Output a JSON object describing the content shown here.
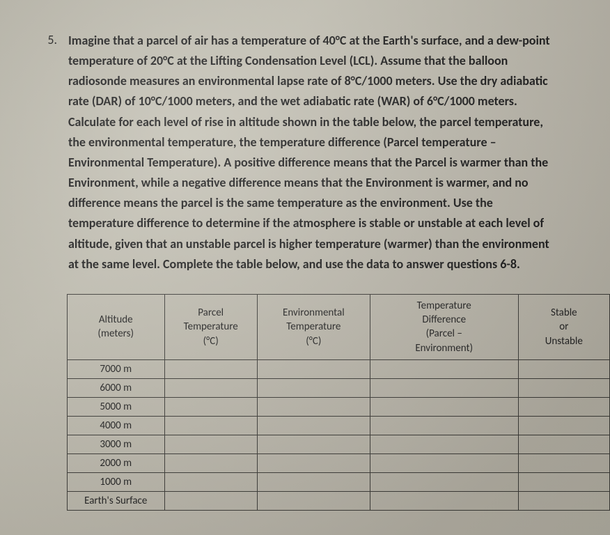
{
  "question": {
    "number": "5.",
    "text": "Imagine that a parcel of air has a temperature of 40°C at the Earth's surface, and a dew-point temperature of 20°C at the Lifting Condensation Level (LCL). Assume that the balloon radiosonde measures an environmental lapse rate of 8°C/1000 meters. Use the dry adiabatic rate (DAR) of 10°C/1000 meters, and the wet adiabatic rate (WAR) of 6°C/1000 meters. Calculate for each level of rise in altitude shown in the table below, the parcel temperature, the environmental temperature, the temperature difference (Parcel temperature – Environmental Temperature). A positive difference means that the Parcel is warmer than the Environment, while a negative difference means that the Environment is warmer, and no difference means the parcel is the same temperature as the environment. Use the temperature difference to determine if the atmosphere is stable or unstable at each level of altitude, given that an unstable parcel is higher temperature (warmer) than the environment at the same level. Complete the table below, and use the data to answer questions 6-8."
  },
  "table": {
    "columns": [
      {
        "lines": [
          "Altitude",
          "(meters)"
        ]
      },
      {
        "lines": [
          "Parcel",
          "Temperature",
          "(°C)"
        ]
      },
      {
        "lines": [
          "Environmental",
          "Temperature",
          "(°C)"
        ]
      },
      {
        "lines": [
          "Temperature",
          "Difference",
          "(Parcel –",
          "Environment)"
        ]
      },
      {
        "lines": [
          "Stable",
          "or",
          "Unstable"
        ]
      }
    ],
    "rows": [
      {
        "altitude": "7000 m"
      },
      {
        "altitude": "6000 m"
      },
      {
        "altitude": "5000 m"
      },
      {
        "altitude": "4000 m"
      },
      {
        "altitude": "3000 m"
      },
      {
        "altitude": "2000 m"
      },
      {
        "altitude": "1000 m"
      },
      {
        "altitude": "Earth's Surface"
      }
    ],
    "border_color": "#3b3a36",
    "font_size": 15
  },
  "style": {
    "page_bg": "#bcb9ac",
    "text_color": "#1a1a1a",
    "question_fontsize": 18,
    "question_lineheight": 1.62
  }
}
